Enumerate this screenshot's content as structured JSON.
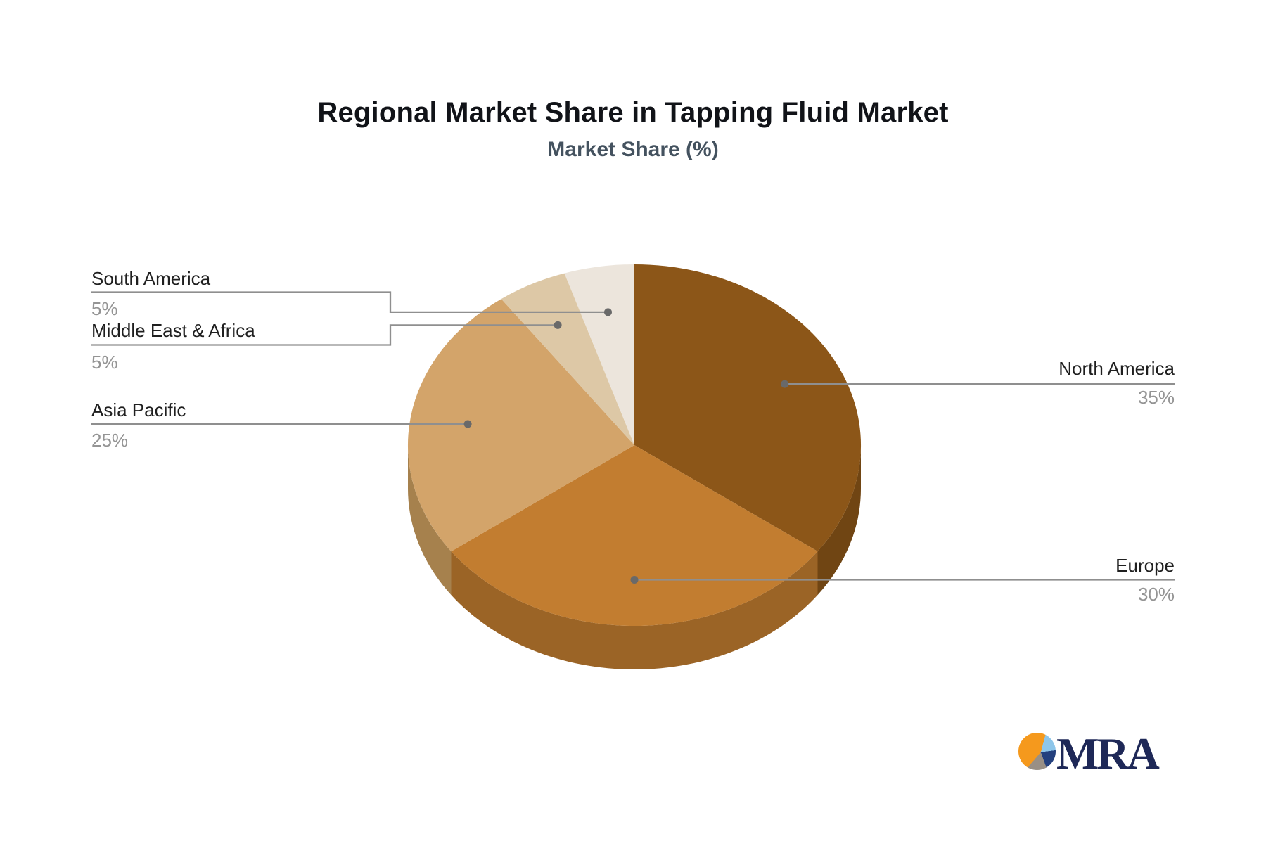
{
  "chart_data": {
    "type": "pie",
    "title": "Regional Market Share in Tapping Fluid Market",
    "subtitle": "Market Share (%)",
    "unit": "%",
    "style": "3d-pie",
    "start_angle_deg": 0,
    "direction": "clockwise",
    "legend_position": "callout-labels",
    "slices": [
      {
        "label": "North America",
        "value": 35,
        "pct_label": "35%",
        "color": "#8c5618",
        "side_color": "#704513"
      },
      {
        "label": "Europe",
        "value": 30,
        "pct_label": "30%",
        "color": "#c27d30",
        "side_color": "#9b6426"
      },
      {
        "label": "Asia Pacific",
        "value": 25,
        "pct_label": "25%",
        "color": "#d3a46a",
        "side_color": "#a6814d"
      },
      {
        "label": "Middle East & Africa",
        "value": 5,
        "pct_label": "5%",
        "color": "#ddc8a6",
        "side_color": "#b3a083"
      },
      {
        "label": "South America",
        "value": 5,
        "pct_label": "5%",
        "color": "#ece5dc",
        "side_color": "#c4bcb1"
      }
    ]
  },
  "colors": {
    "title": "#111318",
    "subtitle": "#44525f",
    "label_text": "#1f1f1f",
    "pct_text": "#949494",
    "connector_line": "#8f8f8f",
    "connector_dot": "#696969",
    "background": "#ffffff"
  },
  "logo": {
    "text": "MRA",
    "text_color": "#1e2857",
    "mark_orange": "#f5991d",
    "mark_blue": "#8ec6ea",
    "mark_navy": "#24407e",
    "mark_gray": "#998f85"
  }
}
